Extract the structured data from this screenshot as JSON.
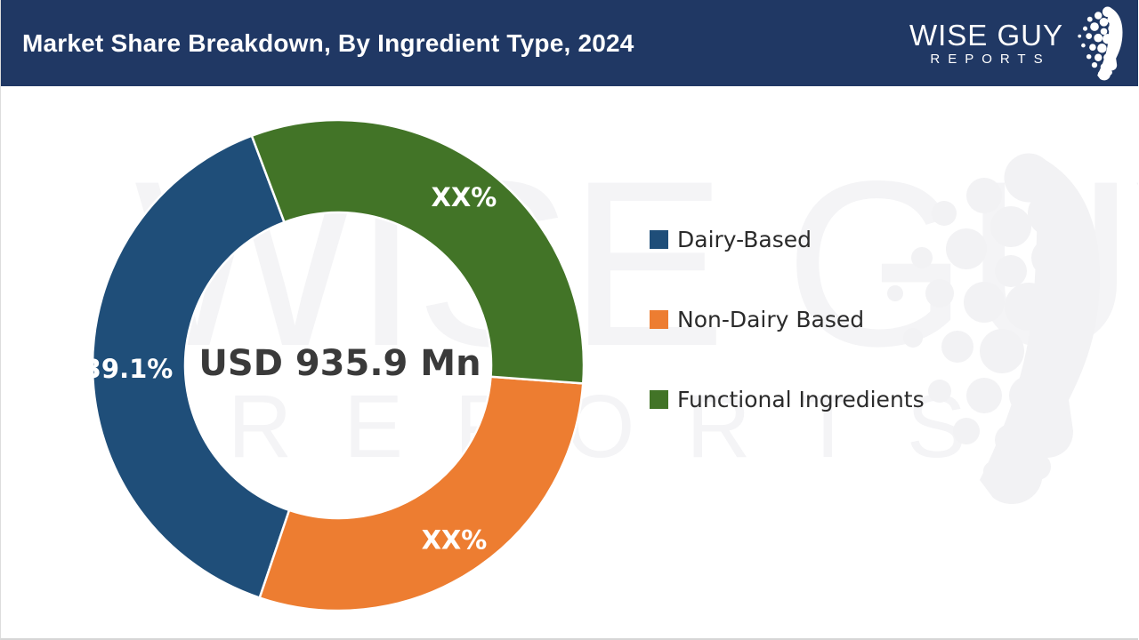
{
  "header": {
    "title": "Market Share Breakdown, By Ingredient Type, 2024",
    "background_color": "#203864",
    "logo": {
      "line1": "WISE GUY",
      "line2": "REPORTS"
    }
  },
  "chart_data": {
    "type": "pie",
    "variant": "donut",
    "title": "Market Share Breakdown, By Ingredient Type, 2024",
    "center_label": "USD 935.9 Mn",
    "start_angle_deg": -20.6,
    "direction": "counterclockwise",
    "inner_radius_ratio": 0.623,
    "legend_position": "right",
    "segments": [
      {
        "label": "Dairy-Based",
        "value_pct": 39.1,
        "display_value": "39.1%",
        "color": "#1F4E79"
      },
      {
        "label": "Non-Dairy Based",
        "value_pct": 29.0,
        "display_value": "XX%",
        "color": "#ED7D31"
      },
      {
        "label": "Functional Ingredients",
        "value_pct": 31.9,
        "display_value": "XX%",
        "color": "#427427"
      }
    ]
  },
  "watermark": {
    "line1": "WISE GUY",
    "line2": "REPORTS"
  },
  "colors": {
    "header_bg": "#203864",
    "center_text": "#3A3A3A",
    "watermark": "#F4F4F6",
    "slice_gap": "#FFFFFF"
  }
}
